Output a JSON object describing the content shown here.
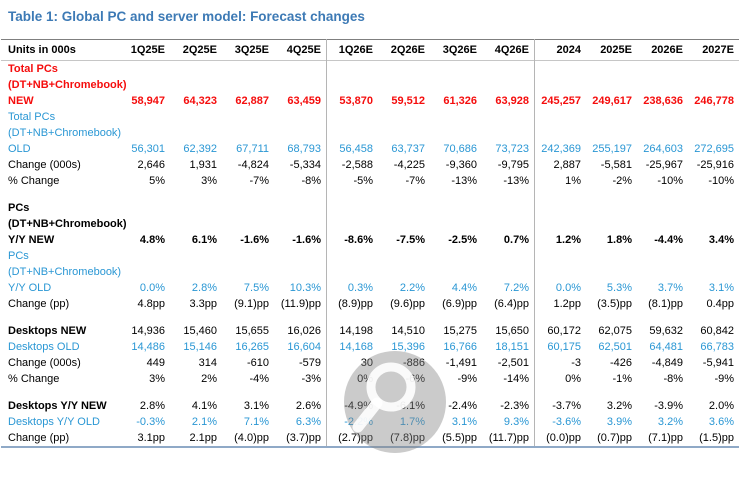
{
  "title": "Table 1: Global PC and server model: Forecast changes",
  "colors": {
    "title_blue": "#3d7ab5",
    "old_estimate_blue": "#2a97d4",
    "new_estimate_red": "#f50d0d",
    "bottom_border_blue": "#8fa9c7"
  },
  "watermark": {
    "icon": "magnifier-icon"
  },
  "table": {
    "unit_label": "Units in 000s",
    "columns": [
      "1Q25E",
      "2Q25E",
      "3Q25E",
      "4Q25E",
      "1Q26E",
      "2Q26E",
      "3Q26E",
      "4Q26E",
      "2024",
      "2025E",
      "2026E",
      "2027E"
    ],
    "rows": [
      {
        "label": "Total PCs",
        "ls": "red"
      },
      {
        "label": "(DT+NB+Chromebook)",
        "ls": "red"
      },
      {
        "label": "NEW",
        "ls": "red",
        "vs": "red",
        "values": [
          "58,947",
          "64,323",
          "62,887",
          "63,459",
          "53,870",
          "59,512",
          "61,326",
          "63,928",
          "245,257",
          "249,617",
          "238,636",
          "246,778"
        ]
      },
      {
        "label": "Total PCs",
        "ls": "blue"
      },
      {
        "label": "(DT+NB+Chromebook)",
        "ls": "blue"
      },
      {
        "label": "OLD",
        "ls": "blue",
        "vs": "blue",
        "values": [
          "56,301",
          "62,392",
          "67,711",
          "68,793",
          "56,458",
          "63,737",
          "70,686",
          "73,723",
          "242,369",
          "255,197",
          "264,603",
          "272,695"
        ]
      },
      {
        "label": "Change (000s)",
        "ls": "plain",
        "vs": "plain",
        "values": [
          "2,646",
          "1,931",
          "-4,824",
          "-5,334",
          "-2,588",
          "-4,225",
          "-9,360",
          "-9,795",
          "2,887",
          "-5,581",
          "-25,967",
          "-25,916"
        ]
      },
      {
        "label": "% Change",
        "ls": "plain",
        "vs": "plain",
        "values": [
          "5%",
          "3%",
          "-7%",
          "-8%",
          "-5%",
          "-7%",
          "-13%",
          "-13%",
          "1%",
          "-2%",
          "-10%",
          "-10%"
        ]
      },
      {
        "spacer": true
      },
      {
        "label": "PCs",
        "ls": "bold"
      },
      {
        "label": "(DT+NB+Chromebook)",
        "ls": "bold"
      },
      {
        "label": "Y/Y NEW",
        "ls": "bold",
        "vs": "bold",
        "values": [
          "4.8%",
          "6.1%",
          "-1.6%",
          "-1.6%",
          "-8.6%",
          "-7.5%",
          "-2.5%",
          "0.7%",
          "1.2%",
          "1.8%",
          "-4.4%",
          "3.4%"
        ]
      },
      {
        "label": "PCs",
        "ls": "blue"
      },
      {
        "label": "(DT+NB+Chromebook)",
        "ls": "blue"
      },
      {
        "label": "Y/Y OLD",
        "ls": "blue",
        "vs": "blue",
        "values": [
          "0.0%",
          "2.8%",
          "7.5%",
          "10.3%",
          "0.3%",
          "2.2%",
          "4.4%",
          "7.2%",
          "0.0%",
          "5.3%",
          "3.7%",
          "3.1%"
        ]
      },
      {
        "label": "Change (pp)",
        "ls": "plain",
        "vs": "plain",
        "values": [
          "4.8pp",
          "3.3pp",
          "(9.1)pp",
          "(11.9)pp",
          "(8.9)pp",
          "(9.6)pp",
          "(6.9)pp",
          "(6.4)pp",
          "1.2pp",
          "(3.5)pp",
          "(8.1)pp",
          "0.4pp"
        ]
      },
      {
        "spacer": true
      },
      {
        "label": "Desktops NEW",
        "ls": "bold",
        "vs": "plain",
        "values": [
          "14,936",
          "15,460",
          "15,655",
          "16,026",
          "14,198",
          "14,510",
          "15,275",
          "15,650",
          "60,172",
          "62,075",
          "59,632",
          "60,842"
        ]
      },
      {
        "label": "Desktops OLD",
        "ls": "blue",
        "vs": "blue",
        "values": [
          "14,486",
          "15,146",
          "16,265",
          "16,604",
          "14,168",
          "15,396",
          "16,766",
          "18,151",
          "60,175",
          "62,501",
          "64,481",
          "66,783"
        ]
      },
      {
        "label": "Change (000s)",
        "ls": "plain",
        "vs": "plain",
        "values": [
          "449",
          "314",
          "-610",
          "-579",
          "30",
          "-886",
          "-1,491",
          "-2,501",
          "-3",
          "-426",
          "-4,849",
          "-5,941"
        ]
      },
      {
        "label": "% Change",
        "ls": "plain",
        "vs": "plain",
        "values": [
          "3%",
          "2%",
          "-4%",
          "-3%",
          "0%",
          "-6%",
          "-9%",
          "-14%",
          "0%",
          "-1%",
          "-8%",
          "-9%"
        ]
      },
      {
        "spacer": true
      },
      {
        "label": "Desktops Y/Y NEW",
        "ls": "bold",
        "vs": "plain",
        "values": [
          "2.8%",
          "4.1%",
          "3.1%",
          "2.6%",
          "-4.9%",
          "-6.1%",
          "-2.4%",
          "-2.3%",
          "-3.7%",
          "3.2%",
          "-3.9%",
          "2.0%"
        ]
      },
      {
        "label": "Desktops Y/Y OLD",
        "ls": "blue",
        "vs": "blue",
        "values": [
          "-0.3%",
          "2.1%",
          "7.1%",
          "6.3%",
          "-2.2%",
          "1.7%",
          "3.1%",
          "9.3%",
          "-3.6%",
          "3.9%",
          "3.2%",
          "3.6%"
        ]
      },
      {
        "label": "Change (pp)",
        "ls": "plain",
        "vs": "plain",
        "values": [
          "3.1pp",
          "2.1pp",
          "(4.0)pp",
          "(3.7)pp",
          "(2.7)pp",
          "(7.8)pp",
          "(5.5)pp",
          "(11.7)pp",
          "(0.0)pp",
          "(0.7)pp",
          "(7.1)pp",
          "(1.5)pp"
        ]
      }
    ]
  }
}
